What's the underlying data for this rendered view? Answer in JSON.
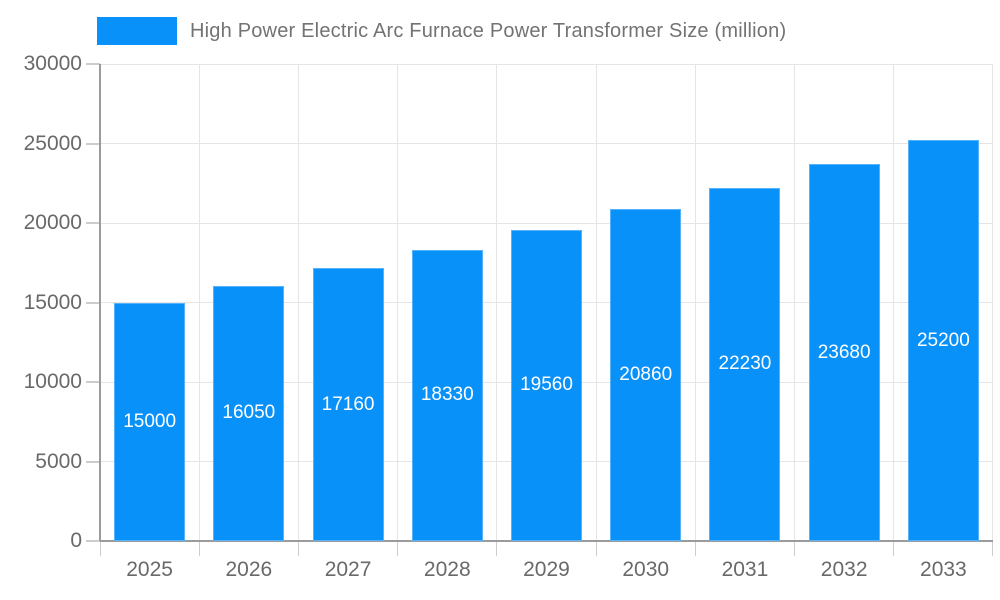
{
  "legend": {
    "label": "High Power Electric Arc Furnace Power Transformer Size (million)"
  },
  "chart_data": {
    "type": "bar",
    "title": "High Power Electric Arc Furnace Power Transformer Size (million)",
    "categories": [
      "2025",
      "2026",
      "2027",
      "2028",
      "2029",
      "2030",
      "2031",
      "2032",
      "2033"
    ],
    "series": [
      {
        "name": "High Power Electric Arc Furnace Power Transformer Size (million)",
        "values": [
          15000,
          16050,
          17160,
          18330,
          19560,
          20860,
          22230,
          23680,
          25200
        ]
      }
    ],
    "bar_value_labels": [
      "15000",
      "16050",
      "17160",
      "18330",
      "19560",
      "20860",
      "22230",
      "23680",
      "25200"
    ],
    "xlabel": "",
    "ylabel": "",
    "ylim": [
      0,
      30000
    ],
    "y_ticks": [
      0,
      5000,
      10000,
      15000,
      20000,
      25000,
      30000
    ],
    "y_tick_labels": [
      "0",
      "5000",
      "10000",
      "15000",
      "20000",
      "25000",
      "30000"
    ],
    "grid": true,
    "legend_position": "top"
  },
  "colors": {
    "bar_fill": "#0991fa",
    "bar_edge": "#55b3fc",
    "bar_label_text": "#ffffff",
    "gridline": "#e5e5e5",
    "axis_line": "#9b9b9b",
    "tick_mark": "#cccccc",
    "axis_label_text": "#696969",
    "legend_text": "#737373",
    "background": "#ffffff"
  }
}
